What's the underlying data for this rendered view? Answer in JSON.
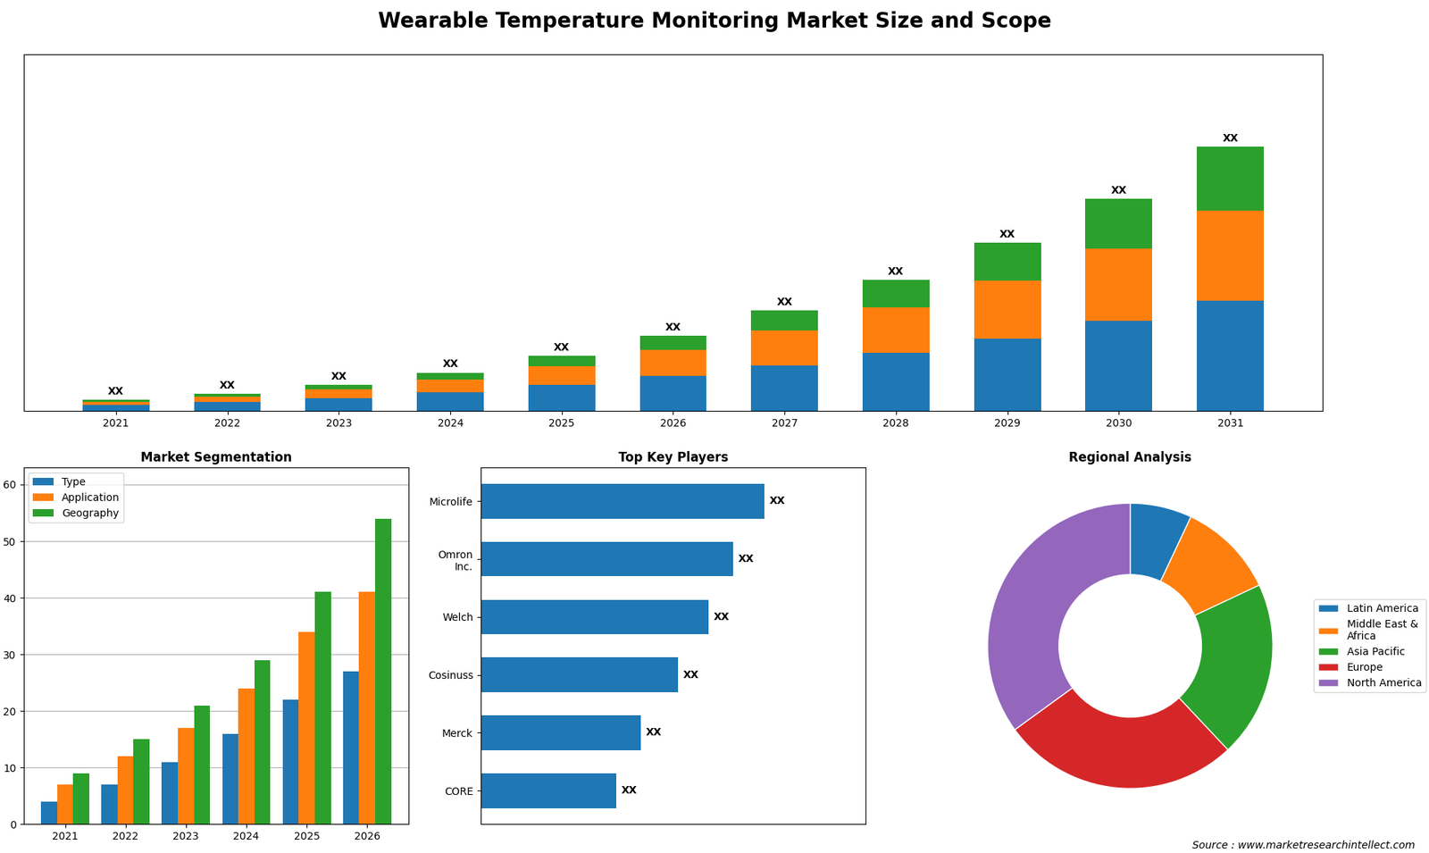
{
  "title": "Wearable Temperature Monitoring Market Size and Scope",
  "annotations": [
    "Source : www.marketresearchintellect.com"
  ],
  "chart_data": [
    {
      "type": "bar",
      "stacked": true,
      "data_labels": true,
      "tick_labels": "x",
      "categories": [
        "2021",
        "2022",
        "2023",
        "2024",
        "2025",
        "2026",
        "2027",
        "2028",
        "2029",
        "2030",
        "2031"
      ],
      "series": [
        {
          "values": [
            1.0,
            1.5,
            2.2,
            3.2,
            4.5,
            6.0,
            7.8,
            10.0,
            12.5,
            15.5,
            19.0
          ]
        },
        {
          "values": [
            0.6,
            1.0,
            1.5,
            2.2,
            3.2,
            4.5,
            6.0,
            7.8,
            10.0,
            12.5,
            15.5
          ]
        },
        {
          "values": [
            0.3,
            0.5,
            0.8,
            1.2,
            1.8,
            2.5,
            3.5,
            4.8,
            6.5,
            8.5,
            11.0
          ]
        }
      ],
      "value_labels": [
        "XX",
        "XX",
        "XX",
        "XX",
        "XX",
        "XX",
        "XX",
        "XX",
        "XX",
        "XX",
        "XX"
      ],
      "ylim": [
        0,
        61.425
      ]
    },
    {
      "type": "bar",
      "title": "Market Segmentation",
      "categories": [
        "2021",
        "2022",
        "2023",
        "2024",
        "2025",
        "2026"
      ],
      "series": [
        {
          "name": "Type",
          "values": [
            4,
            7,
            11,
            16,
            22,
            27
          ]
        },
        {
          "name": "Application",
          "values": [
            7,
            12,
            17,
            24,
            34,
            41
          ]
        },
        {
          "name": "Geography",
          "values": [
            9,
            15,
            21,
            29,
            41,
            54
          ]
        }
      ],
      "ylim": [
        0,
        63
      ],
      "yticks": [
        0,
        10,
        20,
        30,
        40,
        50,
        60
      ],
      "grid": true,
      "legend": "upper left"
    },
    {
      "type": "bar",
      "orientation": "horizontal",
      "title": "Top Key Players",
      "categories": [
        "Microlife",
        "Omron\nInc.",
        "Welch",
        "Cosinuss",
        "Merck",
        "CORE"
      ],
      "values": [
        92,
        82,
        74,
        64,
        52,
        44
      ],
      "data_labels": true,
      "value_labels": [
        "XX",
        "XX",
        "XX",
        "XX",
        "XX",
        "XX"
      ],
      "xlim": [
        0,
        125
      ],
      "tick_labels": "y"
    },
    {
      "type": "pie",
      "title": "Regional Analysis",
      "categories": [
        "Latin America",
        "Middle East &\nAfrica",
        "Asia Pacific",
        "Europe",
        "North America"
      ],
      "values": [
        7,
        11,
        20,
        27,
        35
      ],
      "legend": "right"
    }
  ]
}
